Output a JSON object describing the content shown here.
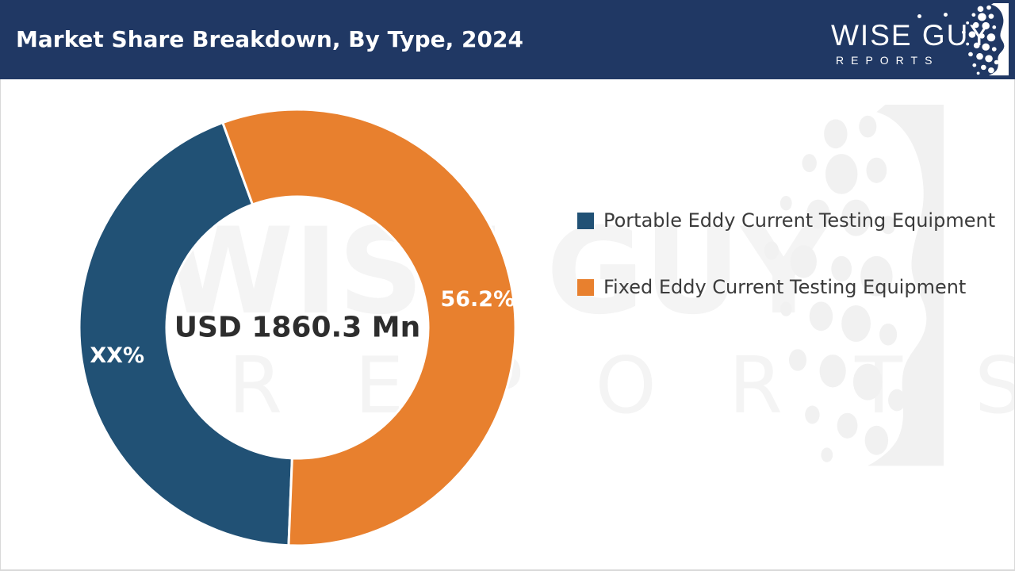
{
  "header": {
    "title": "Market Share Breakdown, By Type, 2024",
    "bg_color": "#203864"
  },
  "brand": {
    "name_line": "WISE GUY",
    "reports_line": "REPORTS"
  },
  "watermark": {
    "line1": "WISE GUY",
    "line2": "R E P O R T S"
  },
  "chart_data": {
    "type": "pie",
    "variant": "donut",
    "title": "Market Share Breakdown, By Type, 2024",
    "center_label": "USD 1860.3 Mn",
    "rotation_deg": 182.3,
    "inner_radius_ratio": 0.6,
    "legend_position": "right",
    "segments": [
      {
        "label": "Portable Eddy Current Testing Equipment",
        "display_label": "XX%",
        "value_pct": 43.8,
        "color": "#215175"
      },
      {
        "label": "Fixed Eddy Current Testing Equipment",
        "display_label": "56.2%",
        "value_pct": 56.2,
        "color": "#E8802E"
      }
    ]
  }
}
